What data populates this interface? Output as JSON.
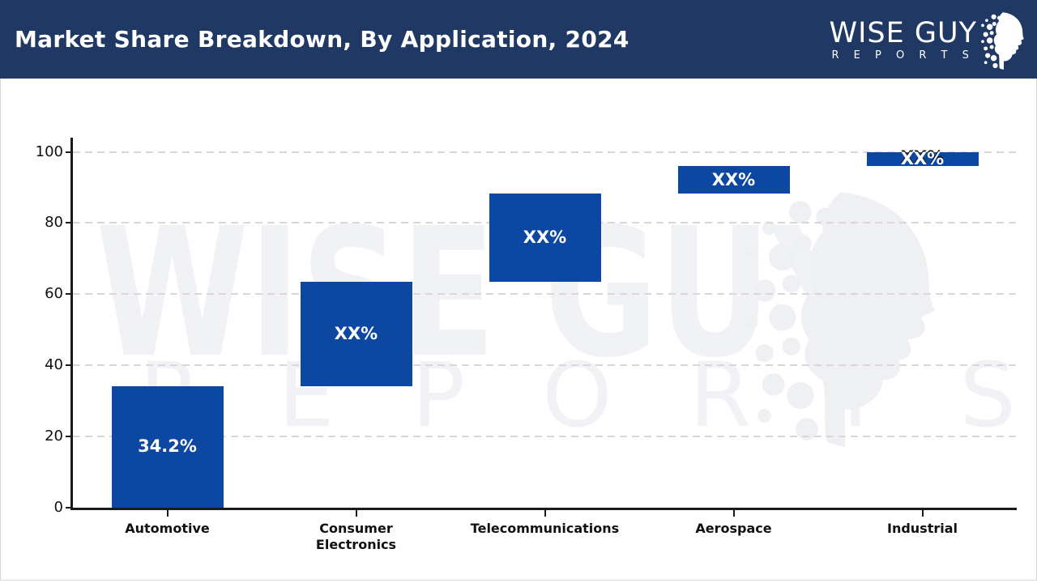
{
  "header": {
    "title": "Market Share Breakdown, By Application, 2024",
    "logo": {
      "line1": "WISE GUY",
      "line2": "R E P O R T S"
    }
  },
  "watermark": {
    "line1": "WISE GUY",
    "line2": "R E P O R T S"
  },
  "colors": {
    "header_bg": "#1f3864",
    "bar_fill": "#0c47a1",
    "grid": "#d8d8d8",
    "axis": "#1a1a1a",
    "bar_label_text": "#ffffff",
    "watermark": "#f1f2f5"
  },
  "chart_data": {
    "type": "bar",
    "subtype": "waterfall",
    "title": "Market Share Breakdown, By Application, 2024",
    "xlabel": "",
    "ylabel": "",
    "categories": [
      "Automotive",
      "Consumer\nElectronics",
      "Telecommunications",
      "Aerospace",
      "Industrial"
    ],
    "segments": [
      {
        "category": "Automotive",
        "start": 0,
        "end": 34.2,
        "label": "34.2%"
      },
      {
        "category": "Consumer Electronics",
        "start": 34.2,
        "end": 63.5,
        "label": "XX%"
      },
      {
        "category": "Telecommunications",
        "start": 63.5,
        "end": 88.2,
        "label": "XX%"
      },
      {
        "category": "Aerospace",
        "start": 88.2,
        "end": 96.0,
        "label": "XX%"
      },
      {
        "category": "Industrial",
        "start": 96.0,
        "end": 100.0,
        "label": "XX%"
      }
    ],
    "ylim": [
      0,
      100
    ],
    "yticks": [
      0,
      20,
      40,
      60,
      80,
      100
    ],
    "grid": "dashed-horizontal",
    "legend": null
  }
}
